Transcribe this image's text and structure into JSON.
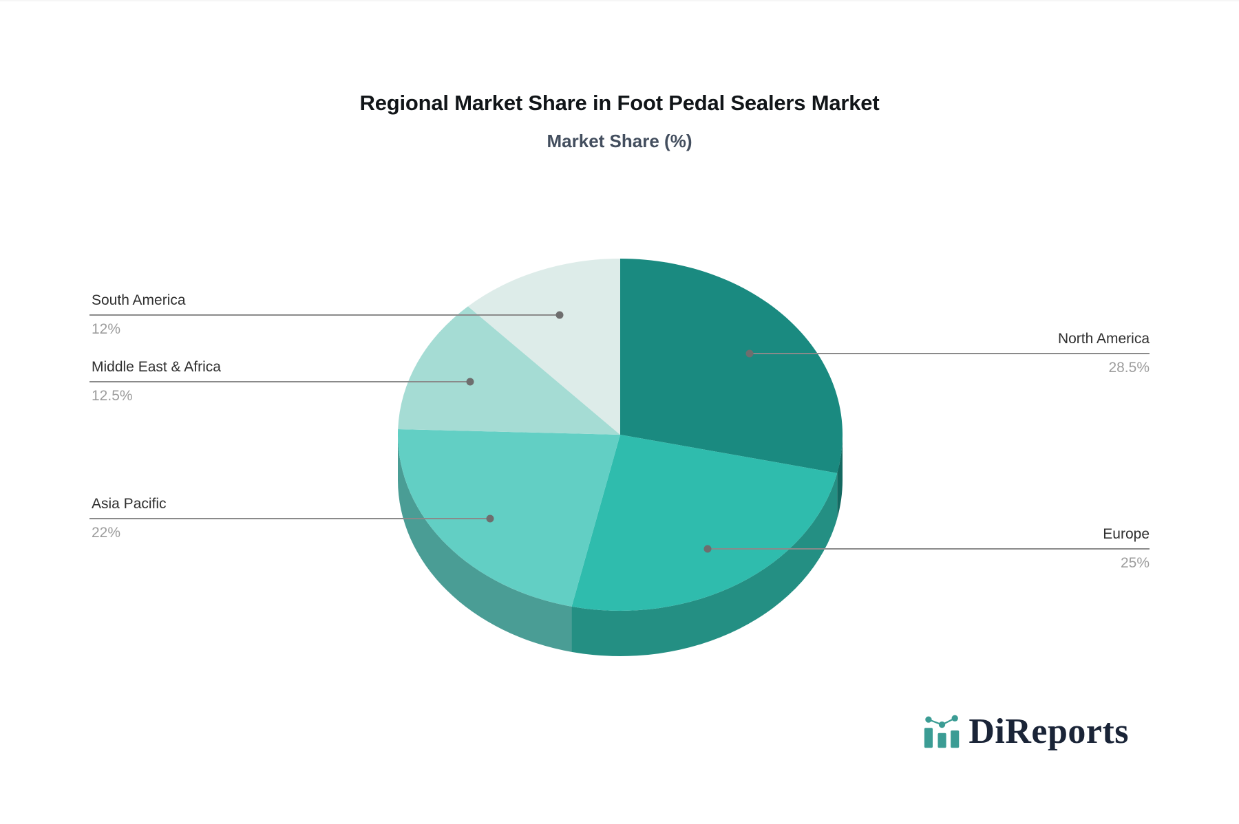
{
  "header": {
    "title": "Regional Market Share in Foot Pedal Sealers Market",
    "subtitle": "Market Share (%)"
  },
  "chart_data": {
    "type": "pie",
    "style": "3d",
    "title": "Regional Market Share in Foot Pedal Sealers Market",
    "subtitle": "Market Share (%)",
    "unit": "%",
    "direction": "clockwise",
    "start_angle_deg": 0,
    "legend_position": "callout-labels-left-and-right",
    "slices": [
      {
        "name": "North America",
        "value": 28.5,
        "display": "28.5%",
        "color": "#1a8a80"
      },
      {
        "name": "Europe",
        "value": 25,
        "display": "25%",
        "color": "#2fbcad"
      },
      {
        "name": "Asia Pacific",
        "value": 22,
        "display": "22%",
        "color": "#62cfc4"
      },
      {
        "name": "Middle East & Africa",
        "value": 12.5,
        "display": "12.5%",
        "color": "#a5dcd4"
      },
      {
        "name": "South America",
        "value": 12,
        "display": "12%",
        "color": "#ddece9"
      }
    ]
  },
  "colors": {
    "title": "#111518",
    "subtitle": "#434e5e",
    "label_name": "#2f2f2f",
    "label_value": "#9c9c9c",
    "leader_line": "#8a8a8a",
    "leader_dot": "#6e6e6e",
    "logo_icon": "#3b9c94",
    "logo_text": "#1a2437",
    "background": "#ffffff"
  },
  "branding": {
    "logo_text": "DiReports",
    "logo_icon": "bar-chart-trend-icon"
  }
}
